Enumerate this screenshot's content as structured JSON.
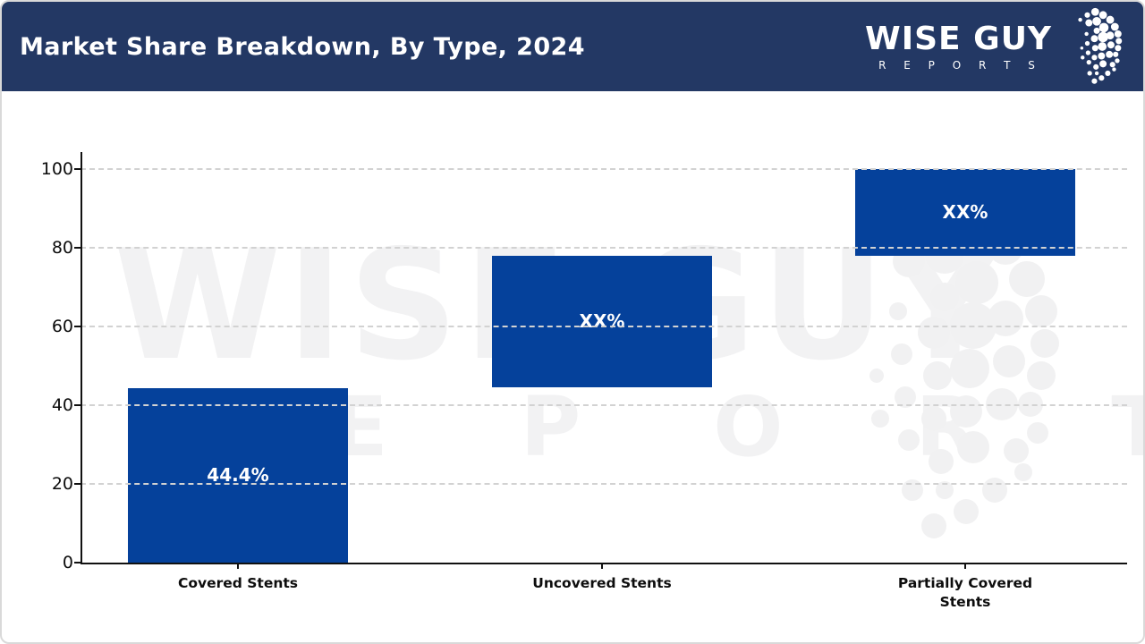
{
  "header": {
    "title": "Market Share Breakdown, By Type, 2024",
    "logo": {
      "wordmark": "WISE GUY",
      "subtext": "R E P O R T S"
    }
  },
  "watermark": {
    "wordmark": "WISE GUY",
    "subtext": "R E P O R T S"
  },
  "chart_data": {
    "type": "bar",
    "subtype": "waterfall",
    "title": "Market Share Breakdown, By Type, 2024",
    "categories": [
      "Covered Stents",
      "Uncovered Stents",
      "Partially Covered Stents"
    ],
    "bars": [
      {
        "category": "Covered Stents",
        "start": 0,
        "end": 44.4,
        "label": "44.4%"
      },
      {
        "category": "Uncovered Stents",
        "start": 44.5,
        "end": 78,
        "label": "XX%"
      },
      {
        "category": "Partially Covered Stents",
        "start": 78,
        "end": 100,
        "label": "XX%"
      }
    ],
    "xlabel": "",
    "ylabel": "",
    "ylim": [
      0,
      100
    ],
    "yticks": [
      0,
      20,
      40,
      60,
      80,
      100
    ],
    "grid": "horizontal-dashed",
    "legend": "none"
  },
  "colors": {
    "header_bg": "#233864",
    "bar": "#05419b",
    "bar_label": "#ffffff",
    "axis": "#111111",
    "grid": "#d2d2d2",
    "watermark": "#f2f2f3"
  }
}
